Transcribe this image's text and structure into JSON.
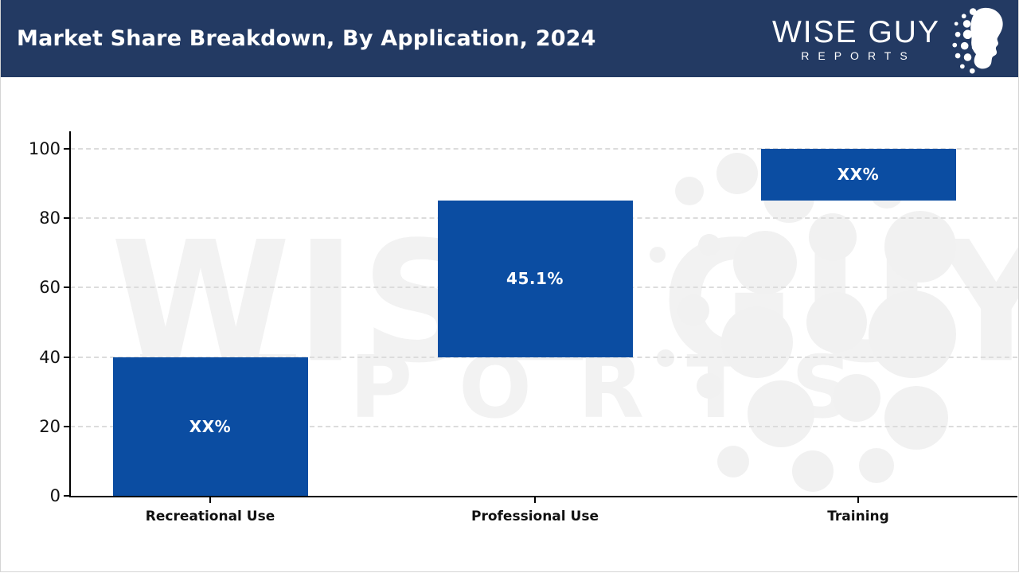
{
  "frame": {
    "background": "#ffffff",
    "border_color": "#d5d5d5"
  },
  "header": {
    "background": "#233a63",
    "title": "Market Share Breakdown, By Application, 2024",
    "logo": {
      "line1": "WISE GUY",
      "line2": "REPORTS"
    }
  },
  "watermark": {
    "line1": "WISE GUY",
    "line2": "REPORTS"
  },
  "chart_data": {
    "type": "bar",
    "variant": "stacked-waterfall",
    "title": "Market Share Breakdown, By Application, 2024",
    "categories": [
      "Recreational Use",
      "Professional Use",
      "Training"
    ],
    "bars": [
      {
        "category": "Recreational Use",
        "label": "XX%",
        "start": 0,
        "end": 40
      },
      {
        "category": "Professional Use",
        "label": "45.1%",
        "start": 40,
        "end": 85.1
      },
      {
        "category": "Training",
        "label": "XX%",
        "start": 85.1,
        "end": 100
      }
    ],
    "ylim": [
      0,
      100
    ],
    "yticks": [
      0,
      20,
      40,
      60,
      80,
      100
    ],
    "grid": "horizontal-dashed",
    "legend": "none",
    "colors": {
      "bar": "#0b4da2",
      "grid": "#dcdcdc",
      "axis": "#000000",
      "tick_label": "#111111",
      "bar_label": "#ffffff"
    }
  }
}
